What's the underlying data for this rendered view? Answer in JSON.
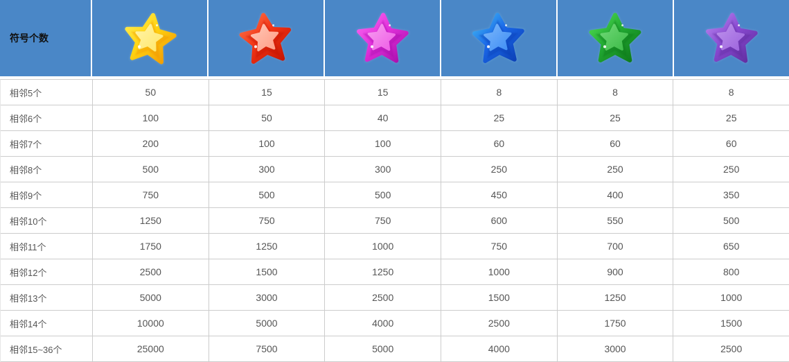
{
  "table": {
    "header": {
      "label": "符号个数",
      "symbols": [
        {
          "name": "yellow-star",
          "glow": "#fff3a0",
          "light": "#ffee55",
          "base": "#ffd412",
          "dark": "#f09000",
          "inner": "#ffe768",
          "inner_light": "#fff3a8",
          "tilt": 8
        },
        {
          "name": "red-star",
          "glow": "#ffc4b2",
          "light": "#ff7a50",
          "base": "#f23515",
          "dark": "#c01000",
          "inner": "#ff9c85",
          "inner_light": "#ffc7b6",
          "tilt": -6
        },
        {
          "name": "pink-star",
          "glow": "#ffb8f5",
          "light": "#f86cf0",
          "base": "#e332dc",
          "dark": "#a30aa8",
          "inner": "#ee5ce6",
          "inner_light": "#f79cf0",
          "tilt": 2
        },
        {
          "name": "blue-star",
          "glow": "#a8e4ff",
          "light": "#45c2f5",
          "base": "#1a67e8",
          "dark": "#0a3bb0",
          "inner": "#3f8ef5",
          "inner_light": "#7ab6fa",
          "tilt": -3
        },
        {
          "name": "green-star",
          "glow": "#b0ffb8",
          "light": "#55e055",
          "base": "#22aa33",
          "dark": "#0c7518",
          "inner": "#3dbb48",
          "inner_light": "#6fd876",
          "tilt": 0
        },
        {
          "name": "purple-star",
          "glow": "#ddc2ff",
          "light": "#b98af0",
          "base": "#8a4ad2",
          "dark": "#5c2a9a",
          "inner": "#9d64dd",
          "inner_light": "#bc90ec",
          "tilt": 2
        }
      ]
    },
    "rows": [
      {
        "label": "相邻5个",
        "values": [
          "50",
          "15",
          "15",
          "8",
          "8",
          "8"
        ]
      },
      {
        "label": "相邻6个",
        "values": [
          "100",
          "50",
          "40",
          "25",
          "25",
          "25"
        ]
      },
      {
        "label": "相邻7个",
        "values": [
          "200",
          "100",
          "100",
          "60",
          "60",
          "60"
        ]
      },
      {
        "label": "相邻8个",
        "values": [
          "500",
          "300",
          "300",
          "250",
          "250",
          "250"
        ]
      },
      {
        "label": "相邻9个",
        "values": [
          "750",
          "500",
          "500",
          "450",
          "400",
          "350"
        ]
      },
      {
        "label": "相邻10个",
        "values": [
          "1250",
          "750",
          "750",
          "600",
          "550",
          "500"
        ]
      },
      {
        "label": "相邻11个",
        "values": [
          "1750",
          "1250",
          "1000",
          "750",
          "700",
          "650"
        ]
      },
      {
        "label": "相邻12个",
        "values": [
          "2500",
          "1500",
          "1250",
          "1000",
          "900",
          "800"
        ]
      },
      {
        "label": "相邻13个",
        "values": [
          "5000",
          "3000",
          "2500",
          "1500",
          "1250",
          "1000"
        ]
      },
      {
        "label": "相邻14个",
        "values": [
          "10000",
          "5000",
          "4000",
          "2500",
          "1750",
          "1500"
        ]
      },
      {
        "label": "相邻15~36个",
        "values": [
          "25000",
          "7500",
          "5000",
          "4000",
          "3000",
          "2500"
        ]
      }
    ]
  },
  "colors": {
    "header_bg": "#4a87c7",
    "header_text": "#111111",
    "border": "#cccccc",
    "row_text": "#555555"
  }
}
